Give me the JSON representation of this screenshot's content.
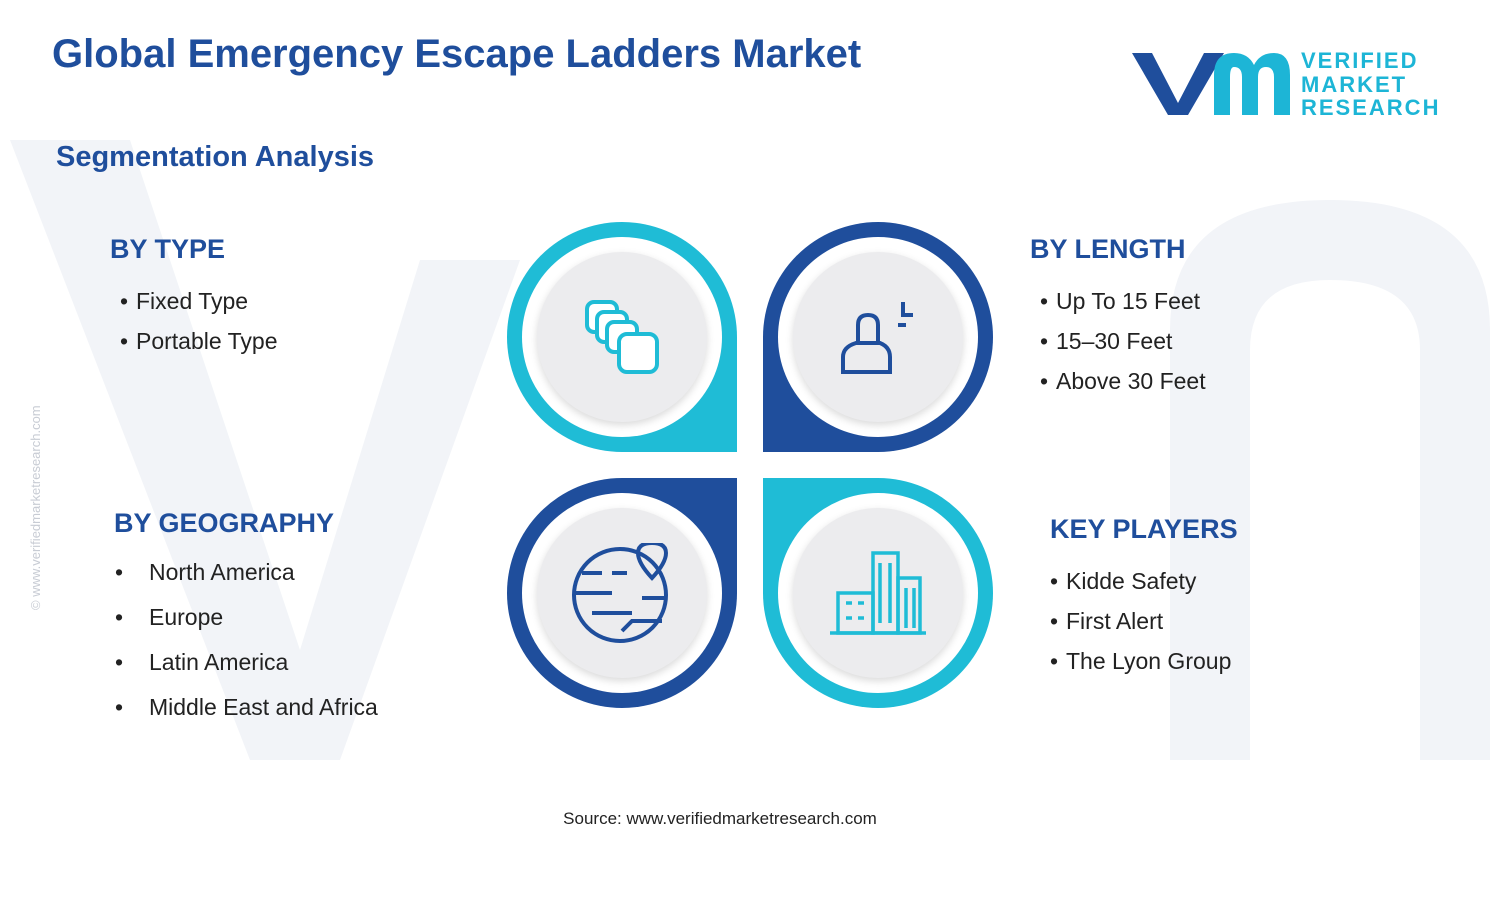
{
  "header": {
    "title": "Global Emergency Escape Ladders Market",
    "subtitle": "Segmentation Analysis"
  },
  "logo": {
    "line1": "VERIFIED",
    "line2": "MARKET",
    "line3": "RESEARCH"
  },
  "watermark": "© www.verifiedmarketresearch.com",
  "segments": [
    {
      "heading": "BY TYPE",
      "items": [
        "Fixed Type",
        "Portable Type"
      ]
    },
    {
      "heading": "BY LENGTH",
      "items": [
        "Up To 15 Feet",
        "15–30 Feet",
        "Above 30 Feet"
      ]
    },
    {
      "heading": "BY GEOGRAPHY",
      "items": [
        "North America",
        "Europe",
        "Latin America",
        "Middle East and Africa"
      ]
    },
    {
      "heading": "KEY PLAYERS",
      "items": [
        "Kidde Safety",
        "First Alert",
        "The Lyon Group"
      ]
    }
  ],
  "source": "Source: www.verifiedmarketresearch.com"
}
